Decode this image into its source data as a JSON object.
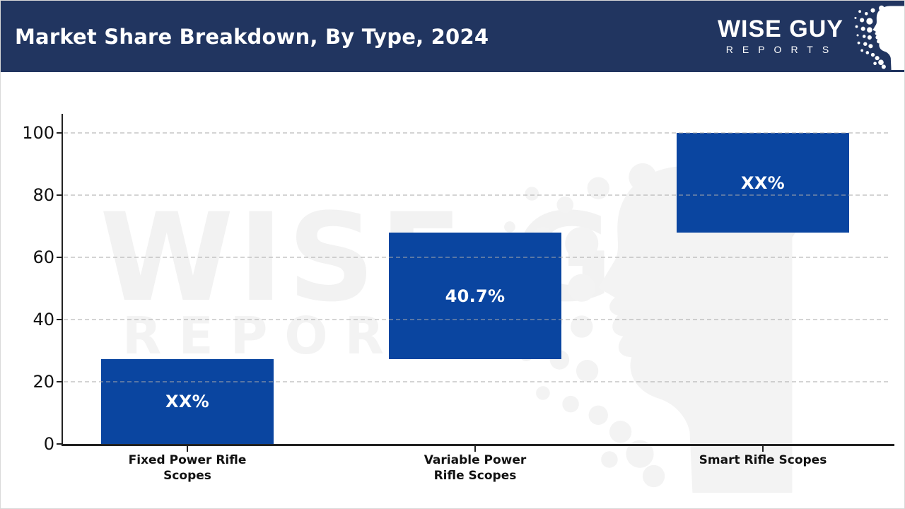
{
  "header": {
    "title": "Market Share Breakdown, By Type, 2024",
    "logo": {
      "wordmark": "WISE GUY",
      "subtext": "REPORTS"
    },
    "bg_color": "#213560"
  },
  "watermark": {
    "wordmark": "WISE GUY",
    "subtext": "REPORTS"
  },
  "chart_data": {
    "type": "bar",
    "subtype": "floating-stacked-percentage-breakdown",
    "title": "Market Share Breakdown, By Type, 2024",
    "categories": [
      "Fixed Power Rifle Scopes",
      "Variable Power Rifle Scopes",
      "Smart Rifle Scopes"
    ],
    "category_label_lines": [
      [
        "Fixed Power Rifle",
        "Scopes"
      ],
      [
        "Variable Power",
        "Rifle Scopes"
      ],
      [
        "Smart Rifle Scopes"
      ]
    ],
    "segments": [
      {
        "category": "Fixed Power Rifle Scopes",
        "label": "XX%",
        "start": 0,
        "end": 27.2
      },
      {
        "category": "Variable Power Rifle Scopes",
        "label": "40.7%",
        "value": 40.7,
        "start": 27.2,
        "end": 67.9
      },
      {
        "category": "Smart Rifle Scopes",
        "label": "XX%",
        "start": 67.9,
        "end": 100
      }
    ],
    "ylim": [
      0,
      100
    ],
    "yticks": [
      0,
      20,
      40,
      60,
      80,
      100
    ],
    "xlabel": "",
    "ylabel": "",
    "grid": "horizontal-dashed",
    "legend": "none",
    "bar_color": "#0a45a0",
    "bar_label_color": "#ffffff"
  }
}
